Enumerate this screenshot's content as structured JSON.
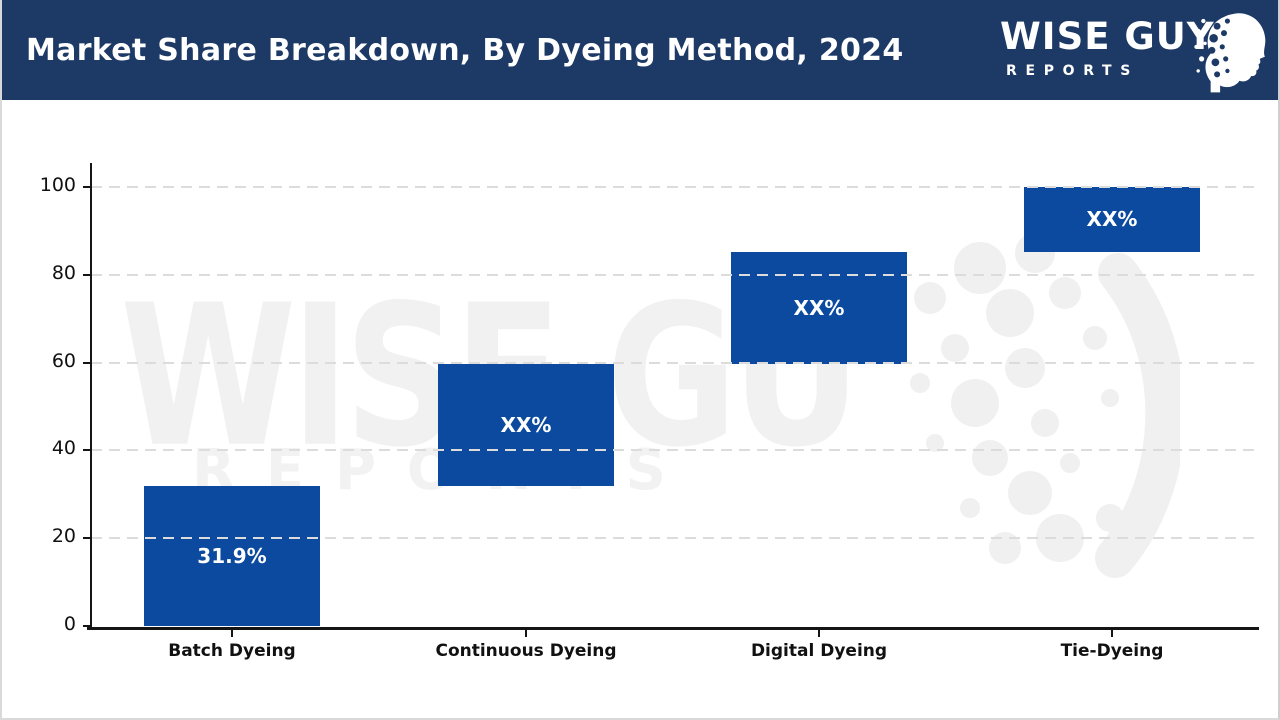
{
  "header": {
    "title": "Market Share Breakdown, By Dyeing Method, 2024",
    "bg_color": "#1d3a66",
    "logo": {
      "line1": "WISE GUY",
      "line2": "REPORTS"
    }
  },
  "watermark": {
    "line1": "WISE GU",
    "line2": "REPORTS"
  },
  "chart_data": {
    "type": "bar",
    "subtype": "waterfall",
    "title": "Market Share Breakdown, By Dyeing Method, 2024",
    "categories": [
      "Batch Dyeing",
      "Continuous Dyeing",
      "Digital Dyeing",
      "Tie-Dyeing"
    ],
    "segments": [
      {
        "category": "Batch Dyeing",
        "start": 0,
        "end": 31.9,
        "label": "31.9%"
      },
      {
        "category": "Continuous Dyeing",
        "start": 31.9,
        "end": 59.7,
        "label": "XX%"
      },
      {
        "category": "Digital Dyeing",
        "start": 59.7,
        "end": 85.2,
        "label": "XX%"
      },
      {
        "category": "Tie-Dyeing",
        "start": 85.2,
        "end": 100,
        "label": "XX%"
      }
    ],
    "xlabel": "",
    "ylabel": "",
    "ylim": [
      0,
      105
    ],
    "yticks": [
      0,
      20,
      40,
      60,
      80,
      100
    ],
    "grid": "horizontal-dashed",
    "legend": "none",
    "colors": {
      "bar": "#0b4a9e",
      "bar_label": "#ffffff",
      "axis": "#151515",
      "grid": "#dcdcdc",
      "tick_label": "#111111"
    }
  }
}
